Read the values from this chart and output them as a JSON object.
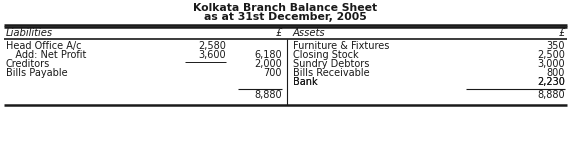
{
  "title_line1": "Kolkata Branch Balance Sheet",
  "title_line2": "as at 31st December, 2005",
  "liabilities_header": "Liabilities",
  "assets_header": "Assets",
  "pound_symbol": "£",
  "liabilities": [
    {
      "name": "Head Office A/c",
      "amount1": "2,580",
      "amount2": ""
    },
    {
      "name": "   Add: Net Profit",
      "amount1": "3,600",
      "amount2": "6,180"
    },
    {
      "name": "Creditors",
      "amount1": "",
      "amount2": "2,000"
    },
    {
      "name": "Bills Payable",
      "amount1": "",
      "amount2": "700"
    }
  ],
  "assets": [
    {
      "name": "Furniture & Fixtures",
      "amount": "350"
    },
    {
      "name": "Closing Stock",
      "amount": "2,500"
    },
    {
      "name": "Sundry Debtors",
      "amount": "3,000"
    },
    {
      "name": "Bills Receivable",
      "amount": "800"
    },
    {
      "name": "Bank",
      "amount": "2,230"
    }
  ],
  "total": "8,880",
  "bg_color": "#ffffff",
  "text_color": "#1a1a1a",
  "line_color": "#1a1a1a",
  "title_fontsize": 7.8,
  "header_fontsize": 7.2,
  "row_fontsize": 7.0
}
